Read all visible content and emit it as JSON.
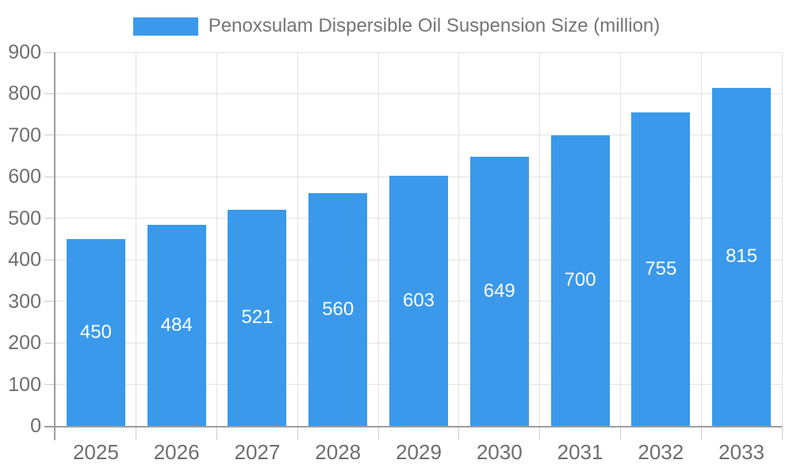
{
  "legend": {
    "label": "Penoxsulam Dispersible Oil Suspension Size (million)"
  },
  "chart_data": {
    "type": "bar",
    "title": "Penoxsulam Dispersible Oil Suspension Size (million)",
    "categories": [
      "2025",
      "2026",
      "2027",
      "2028",
      "2029",
      "2030",
      "2031",
      "2032",
      "2033"
    ],
    "values": [
      450,
      484,
      521,
      560,
      603,
      649,
      700,
      755,
      815
    ],
    "xlabel": "",
    "ylabel": "",
    "ylim": [
      0,
      900
    ],
    "ytick_step": 100,
    "grid": true,
    "legend_position": "top",
    "value_labels": "inside-center-white",
    "colors": {
      "bar": "#3A99EA",
      "value_label": "#ffffff",
      "axis_line": "#9E9E9E",
      "gridline": "#E3E3E3",
      "tick": "#CDCDCD",
      "axis_text": "#6E6E6E",
      "legend_text": "#757575"
    }
  }
}
